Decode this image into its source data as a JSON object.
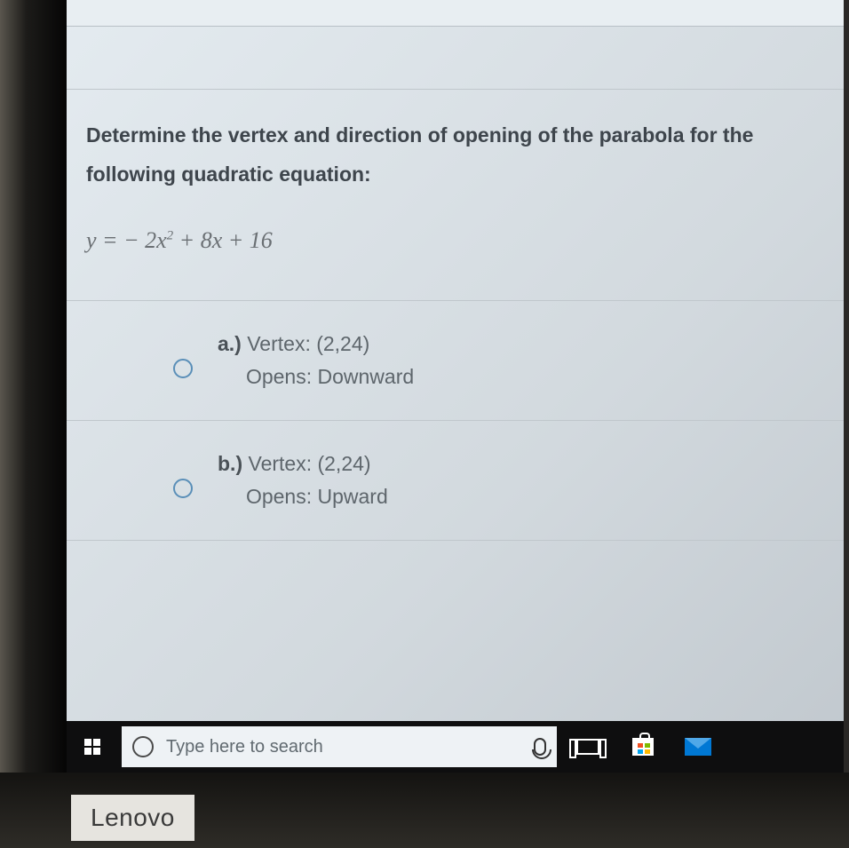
{
  "question": {
    "prompt_line1": "Determine the vertex and direction of opening of the parabola for the",
    "prompt_line2": "following quadratic equation:",
    "equation_prefix": "y = − 2x",
    "equation_exp": "2",
    "equation_suffix": " + 8x + 16"
  },
  "options": [
    {
      "label": "a.)",
      "line1": "Vertex: (2,24)",
      "line2": "Opens: Downward"
    },
    {
      "label": "b.)",
      "line1": "Vertex: (2,24)",
      "line2": "Opens: Upward"
    }
  ],
  "taskbar": {
    "search_placeholder": "Type here to search"
  },
  "brand": "Lenovo"
}
